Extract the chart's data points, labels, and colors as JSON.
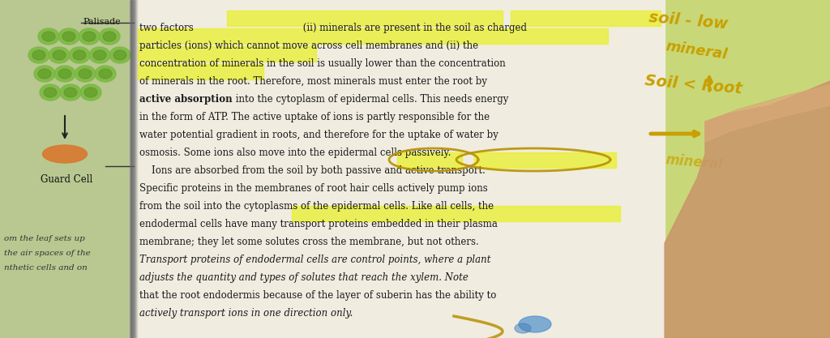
{
  "bg_left_color": "#b8c890",
  "bg_right_color": "#c8d878",
  "page_color": "#e8e4d8",
  "page_color2": "#f0ece0",
  "text_color": "#1a1a1a",
  "highlight_yellow": "#e8f020",
  "annotation_color": "#c8a000",
  "hand_color": "#c8956a",
  "line1": "two factors                                    (ii) minerals are present in the soil as charged",
  "line2": "particles (ions) which cannot move across cell membranes and (ii) the",
  "line3": "concentration of minerals in the soil is usually lower than the concentration",
  "line4": "of minerals in the root. Therefore, most minerals must enter the root by",
  "line5": "active absorption into the cytoplasm of epidermal cells. This needs energy",
  "line6": "in the form of ATP. The active uptake of ions is partly responsible for the",
  "line7": "water potential gradient in roots, and therefore for the uptake of water by",
  "line8": "osmosis. Some ions also move into the epidermal cells passively.",
  "line9": "    Ions are absorbed from the soil by both passive and active transport.",
  "line10": "Specific proteins in the membranes of root hair cells actively pump ions",
  "line11": "from the soil into the cytoplasms of the epidermal cells. Like all cells, the",
  "line12": "endodermal cells have many transport proteins embedded in their plasma",
  "line13": "membrane; they let some solutes cross the membrane, but not others.",
  "line14": "Transport proteins of endodermal cells are control points, where a plant",
  "line15": "adjusts the quantity and types of solutes that reach the xylem. Note",
  "line16": "that the root endodermis because of the layer of suberin has the ability to",
  "line17": "actively transport ions in one direction only.",
  "ann1": "soil - low",
  "ann2": "mineral",
  "ann3": "Soil < Root",
  "ann4": "mineral",
  "left_label1": "Palisade",
  "left_label2": "Guard Cell",
  "left_label3": "om the leaf sets up",
  "left_label4": "the air spaces of the",
  "left_label5": "nthetic cells and on"
}
